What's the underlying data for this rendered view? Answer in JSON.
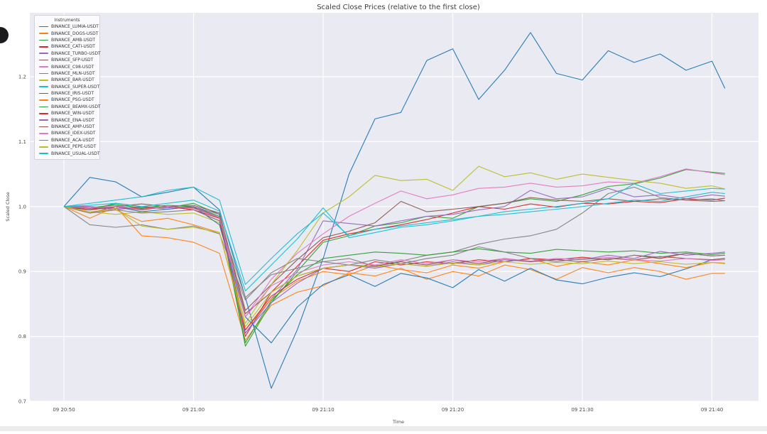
{
  "page": {
    "background": "#ffffff",
    "bottom_strip_color": "#ececec",
    "overlay_dot_color": "#1b1b1d"
  },
  "chart_data": {
    "type": "line",
    "title": "Scaled Close Prices (relative to the first close)",
    "xlabel": "Time",
    "ylabel": "Scaled Close",
    "legend_title": "Instruments",
    "legend_position": "upper left",
    "grid": true,
    "panel_bg": "#eaeaf2",
    "grid_color": "#ffffff",
    "tick_color": "#4a4a4a",
    "title_color": "#3d3d3d",
    "ylim": [
      0.7,
      1.2985
    ],
    "xlim_minutes": [
      -2.6,
      53.6
    ],
    "y_ticks": [
      {
        "v": 0.7,
        "label": "0.7"
      },
      {
        "v": 0.8,
        "label": "0.8"
      },
      {
        "v": 0.9,
        "label": "0.9"
      },
      {
        "v": 1.0,
        "label": "1.0"
      },
      {
        "v": 1.1,
        "label": "1.1"
      },
      {
        "v": 1.2,
        "label": "1.2"
      }
    ],
    "x_ticks": [
      {
        "m": 0,
        "label": "09 20:50"
      },
      {
        "m": 10,
        "label": "09 21:00"
      },
      {
        "m": 20,
        "label": "09 21:10"
      },
      {
        "m": 30,
        "label": "09 21:20"
      },
      {
        "m": 40,
        "label": "09 21:30"
      },
      {
        "m": 50,
        "label": "09 21:40"
      }
    ],
    "x_minutes": [
      0,
      2,
      4,
      6,
      8,
      10,
      12,
      14,
      16,
      18,
      20,
      22,
      24,
      26,
      28,
      30,
      32,
      34,
      36,
      38,
      40,
      42,
      44,
      46,
      48,
      50,
      51
    ],
    "series": [
      {
        "name": "BINANCE_LUMIA-USDT",
        "color": "#1f77b4",
        "values": [
          1.0,
          1.045,
          1.038,
          1.015,
          1.022,
          1.03,
          0.995,
          0.86,
          0.72,
          0.81,
          0.92,
          1.05,
          1.135,
          1.145,
          1.225,
          1.243,
          1.165,
          1.21,
          1.268,
          1.205,
          1.195,
          1.24,
          1.222,
          1.235,
          1.21,
          1.224,
          1.182
        ]
      },
      {
        "name": "BINANCE_DOGS-USDT",
        "color": "#ff7f0e",
        "values": [
          1.0,
          0.982,
          1.0,
          0.955,
          0.952,
          0.945,
          0.928,
          0.794,
          0.848,
          0.868,
          0.878,
          0.898,
          0.893,
          0.905,
          0.888,
          0.9,
          0.893,
          0.91,
          0.903,
          0.888,
          0.906,
          0.898,
          0.906,
          0.9,
          0.888,
          0.897,
          0.897
        ]
      },
      {
        "name": "BINANCE_AMB-USDT",
        "color": "#2ca02c",
        "values": [
          1.0,
          0.995,
          1.005,
          1.0,
          0.998,
          1.005,
          0.988,
          0.785,
          0.852,
          0.9,
          0.945,
          0.955,
          0.97,
          0.975,
          0.985,
          0.982,
          1.0,
          1.005,
          1.012,
          1.008,
          1.018,
          1.031,
          1.035,
          1.044,
          1.057,
          1.053,
          1.051
        ]
      },
      {
        "name": "BINANCE_CATI-USDT",
        "color": "#d62728",
        "values": [
          1.0,
          0.99,
          1.0,
          0.995,
          1.0,
          0.995,
          0.982,
          0.8,
          0.868,
          0.908,
          0.948,
          0.958,
          0.965,
          0.972,
          0.98,
          0.99,
          1.0,
          0.996,
          1.004,
          0.999,
          1.005,
          1.004,
          1.008,
          1.006,
          1.012,
          1.01,
          1.013
        ]
      },
      {
        "name": "BINANCE_TURBO-USDT",
        "color": "#9467bd",
        "values": [
          1.0,
          1.0,
          0.995,
          1.0,
          0.996,
          1.0,
          0.988,
          0.805,
          0.858,
          0.903,
          0.978,
          0.974,
          0.97,
          0.978,
          0.985,
          0.988,
          0.995,
          1.0,
          1.025,
          1.012,
          1.015,
          1.028,
          1.015,
          1.018,
          1.012,
          1.018,
          1.016
        ]
      },
      {
        "name": "BINANCE_SFP-USDT",
        "color": "#8c564b",
        "values": [
          1.0,
          0.995,
          1.0,
          1.004,
          1.0,
          1.002,
          0.99,
          0.84,
          0.88,
          0.918,
          0.952,
          0.962,
          0.975,
          1.008,
          0.992,
          0.996,
          1.0,
          1.005,
          1.014,
          1.01,
          1.008,
          1.012,
          1.008,
          1.012,
          1.01,
          1.008,
          1.009
        ]
      },
      {
        "name": "BINANCE_C98-USDT",
        "color": "#e377c2",
        "values": [
          1.0,
          0.998,
          1.002,
          0.995,
          1.0,
          0.998,
          0.983,
          0.83,
          0.888,
          0.928,
          0.958,
          0.985,
          1.005,
          1.024,
          1.012,
          1.018,
          1.028,
          1.03,
          1.036,
          1.03,
          1.032,
          1.038,
          1.036,
          1.046,
          1.058,
          1.052,
          1.049
        ]
      },
      {
        "name": "BINANCE_MLN-USDT",
        "color": "#7f7f7f",
        "values": [
          1.0,
          0.972,
          0.968,
          0.972,
          0.965,
          0.97,
          0.958,
          0.856,
          0.898,
          0.92,
          0.915,
          0.92,
          0.908,
          0.916,
          0.925,
          0.93,
          0.942,
          0.95,
          0.955,
          0.965,
          0.99,
          1.02,
          1.03,
          1.014,
          1.01,
          1.012,
          1.009
        ]
      },
      {
        "name": "BINANCE_BAR-USDT",
        "color": "#bcbd22",
        "values": [
          1.0,
          0.992,
          0.988,
          0.992,
          0.988,
          0.99,
          0.975,
          0.82,
          0.88,
          0.932,
          0.99,
          1.015,
          1.048,
          1.04,
          1.042,
          1.025,
          1.062,
          1.046,
          1.052,
          1.042,
          1.05,
          1.045,
          1.04,
          1.036,
          1.028,
          1.032,
          1.027
        ]
      },
      {
        "name": "BINANCE_SUPER-USDT",
        "color": "#17becf",
        "values": [
          1.0,
          1.005,
          1.01,
          1.015,
          1.025,
          1.03,
          1.01,
          0.88,
          0.92,
          0.958,
          0.99,
          0.955,
          0.965,
          0.97,
          0.975,
          0.98,
          0.985,
          0.992,
          0.996,
          1.0,
          1.005,
          1.012,
          1.035,
          1.02,
          1.024,
          1.028,
          1.027
        ]
      },
      {
        "name": "BINANCE_IRIS-USDT",
        "color": "#1f77b4",
        "values": [
          1.0,
          0.995,
          1.0,
          0.992,
          0.996,
          1.0,
          0.972,
          0.83,
          0.79,
          0.845,
          0.88,
          0.895,
          0.877,
          0.897,
          0.89,
          0.875,
          0.903,
          0.885,
          0.905,
          0.887,
          0.881,
          0.891,
          0.898,
          0.892,
          0.904,
          0.918,
          0.92
        ]
      },
      {
        "name": "BINANCE_PSG-USDT",
        "color": "#ff7f0e",
        "values": [
          1.0,
          0.99,
          0.995,
          0.977,
          0.982,
          0.972,
          0.96,
          0.81,
          0.858,
          0.885,
          0.9,
          0.895,
          0.91,
          0.903,
          0.898,
          0.91,
          0.905,
          0.915,
          0.92,
          0.908,
          0.915,
          0.91,
          0.918,
          0.912,
          0.906,
          0.914,
          0.912
        ]
      },
      {
        "name": "BINANCE_BEAMX-USDT",
        "color": "#2ca02c",
        "values": [
          1.0,
          0.998,
          1.003,
          0.998,
          1.002,
          1.0,
          0.985,
          0.79,
          0.855,
          0.895,
          0.92,
          0.925,
          0.93,
          0.928,
          0.925,
          0.93,
          0.935,
          0.93,
          0.928,
          0.934,
          0.932,
          0.93,
          0.932,
          0.928,
          0.93,
          0.926,
          0.928
        ]
      },
      {
        "name": "BINANCE_WIN-USDT",
        "color": "#d62728",
        "values": [
          1.0,
          0.995,
          1.0,
          0.997,
          1.0,
          0.995,
          0.978,
          0.81,
          0.862,
          0.888,
          0.905,
          0.9,
          0.915,
          0.91,
          0.915,
          0.912,
          0.918,
          0.915,
          0.92,
          0.918,
          0.922,
          0.918,
          0.925,
          0.92,
          0.928,
          0.924,
          0.925
        ]
      },
      {
        "name": "BINANCE_ENA-USDT",
        "color": "#9467bd",
        "values": [
          1.0,
          1.0,
          0.997,
          1.0,
          0.998,
          1.0,
          0.983,
          0.805,
          0.852,
          0.882,
          0.905,
          0.91,
          0.905,
          0.912,
          0.908,
          0.915,
          0.91,
          0.918,
          0.915,
          0.92,
          0.918,
          0.925,
          0.92,
          0.931,
          0.925,
          0.928,
          0.93
        ]
      },
      {
        "name": "BINANCE_AMP-USDT",
        "color": "#8c564b",
        "values": [
          1.0,
          0.997,
          1.0,
          0.995,
          1.0,
          0.998,
          0.983,
          0.835,
          0.868,
          0.893,
          0.905,
          0.91,
          0.908,
          0.915,
          0.91,
          0.918,
          0.912,
          0.92,
          0.915,
          0.918,
          0.915,
          0.92,
          0.918,
          0.923,
          0.92,
          0.918,
          0.92
        ]
      },
      {
        "name": "BINANCE_IDEX-USDT",
        "color": "#e377c2",
        "values": [
          1.0,
          0.998,
          1.0,
          0.996,
          1.0,
          0.997,
          0.983,
          0.83,
          0.878,
          0.898,
          0.91,
          0.915,
          0.91,
          0.918,
          0.912,
          0.918,
          0.915,
          0.92,
          0.916,
          0.92,
          0.918,
          0.922,
          0.918,
          0.916,
          0.92,
          0.917,
          0.918
        ]
      },
      {
        "name": "BINANCE_ACA-USDT",
        "color": "#7f7f7f",
        "values": [
          1.0,
          0.99,
          0.995,
          0.99,
          0.992,
          0.995,
          0.978,
          0.86,
          0.895,
          0.905,
          0.915,
          0.91,
          0.918,
          0.912,
          0.92,
          0.925,
          0.938,
          0.93,
          0.92,
          0.915,
          0.92,
          0.918,
          0.925,
          0.922,
          0.928,
          0.924,
          0.925
        ]
      },
      {
        "name": "BINANCE_PEPE-USDT",
        "color": "#bcbd22",
        "values": [
          1.0,
          0.992,
          0.996,
          0.97,
          0.965,
          0.968,
          0.96,
          0.815,
          0.868,
          0.893,
          0.905,
          0.91,
          0.907,
          0.912,
          0.908,
          0.913,
          0.91,
          0.915,
          0.911,
          0.914,
          0.912,
          0.916,
          0.912,
          0.915,
          0.911,
          0.914,
          0.913
        ]
      },
      {
        "name": "BINANCE_USUAL-USDT",
        "color": "#17becf",
        "values": [
          1.0,
          1.002,
          1.005,
          1.0,
          1.005,
          1.01,
          0.993,
          0.87,
          0.91,
          0.95,
          0.998,
          0.952,
          0.96,
          0.968,
          0.972,
          0.978,
          0.985,
          0.988,
          0.992,
          0.996,
          1.0,
          1.005,
          1.01,
          1.008,
          1.015,
          1.022,
          1.02
        ]
      }
    ]
  }
}
